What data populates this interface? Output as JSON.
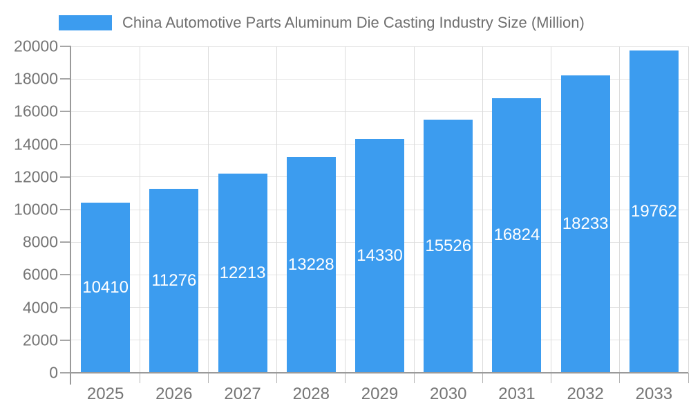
{
  "colors": {
    "bar": "#3C9CEF",
    "axis_line": "#9A9A9A",
    "grid_horizontal": "#E3E3E3",
    "grid_vertical": "#DBDBDB",
    "axis_text": "#757575",
    "legend_text": "#6F6F6F",
    "value_label_text": "#FFFFFF",
    "background": "#FFFFFF"
  },
  "legend": {
    "swatch": "series-color-swatch",
    "label": "China Automotive Parts Aluminum Die Casting Industry Size (Million)"
  },
  "chart_data": {
    "type": "bar",
    "title": "China Automotive Parts Aluminum Die Casting Industry Size (Million)",
    "xlabel": "",
    "ylabel": "",
    "categories": [
      "2025",
      "2026",
      "2027",
      "2028",
      "2029",
      "2030",
      "2031",
      "2032",
      "2033"
    ],
    "series": [
      {
        "name": "China Automotive Parts Aluminum Die Casting Industry Size (Million)",
        "values": [
          10410,
          11276,
          12213,
          13228,
          14330,
          15526,
          16824,
          18233,
          19762
        ],
        "color": "#3C9CEF"
      }
    ],
    "values": [
      10410,
      11276,
      12213,
      13228,
      14330,
      15526,
      16824,
      18233,
      19762
    ],
    "value_labels_position": "inside-center",
    "yticks": [
      0,
      2000,
      4000,
      6000,
      8000,
      10000,
      12000,
      14000,
      16000,
      18000,
      20000
    ],
    "ylim": [
      0,
      20000
    ],
    "grid": true,
    "legend_position": "top-left"
  }
}
